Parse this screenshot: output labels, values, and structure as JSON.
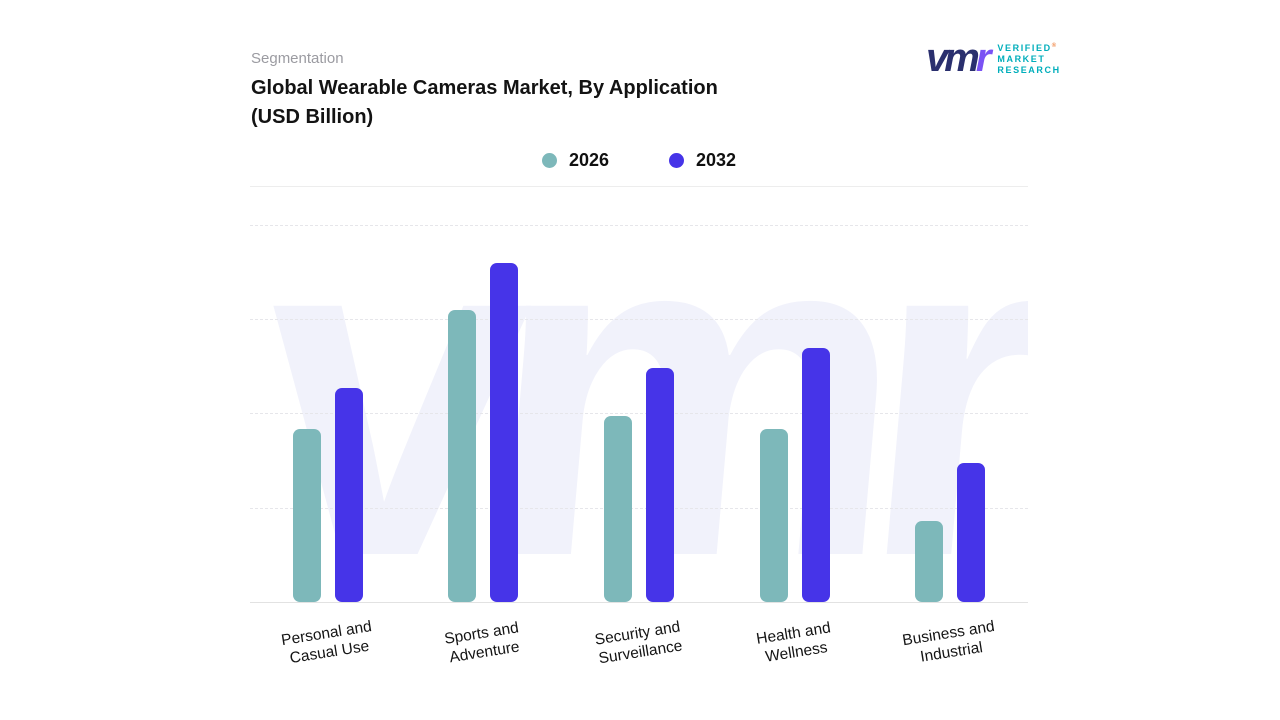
{
  "header": {
    "eyebrow": "Segmentation",
    "title_line1": "Global Wearable Cameras Market, By Application",
    "title_line2": "(USD Billion)"
  },
  "logo": {
    "mark": "vm",
    "mark_accent": "r",
    "registered": "®",
    "lines": [
      "VERIFIED",
      "MARKET",
      "RESEARCH"
    ]
  },
  "legend": [
    {
      "label": "2026",
      "color": "#7db8ba"
    },
    {
      "label": "2032",
      "color": "#4634e8"
    }
  ],
  "watermark_text": "vmr",
  "chart_data": {
    "type": "bar",
    "title": "Global Wearable Cameras Market, By Application (USD Billion)",
    "section": "Segmentation",
    "categories": [
      "Personal and Casual Use",
      "Sports and Adventure",
      "Security and Surveillance",
      "Health and Wellness",
      "Business and Industrial"
    ],
    "category_label_lines": [
      [
        "Personal and",
        "Casual Use"
      ],
      [
        "Sports and",
        "Adventure"
      ],
      [
        "Security and",
        "Surveillance"
      ],
      [
        "Health and",
        "Wellness"
      ],
      [
        "Business and",
        "Industrial"
      ]
    ],
    "series": [
      {
        "name": "2026",
        "color": "#7db8ba",
        "values": [
          51,
          86,
          55,
          51,
          24
        ]
      },
      {
        "name": "2032",
        "color": "#4634e8",
        "values": [
          63,
          100,
          69,
          75,
          41
        ]
      }
    ],
    "ylim": [
      0,
      100
    ],
    "y_axis_labels_shown": false,
    "grid": "horizontal-dashed",
    "legend_position": "top-center",
    "note": "No numeric axis shown; values are relative heights with tallest bar (Sports and Adventure 2032) = 100"
  }
}
